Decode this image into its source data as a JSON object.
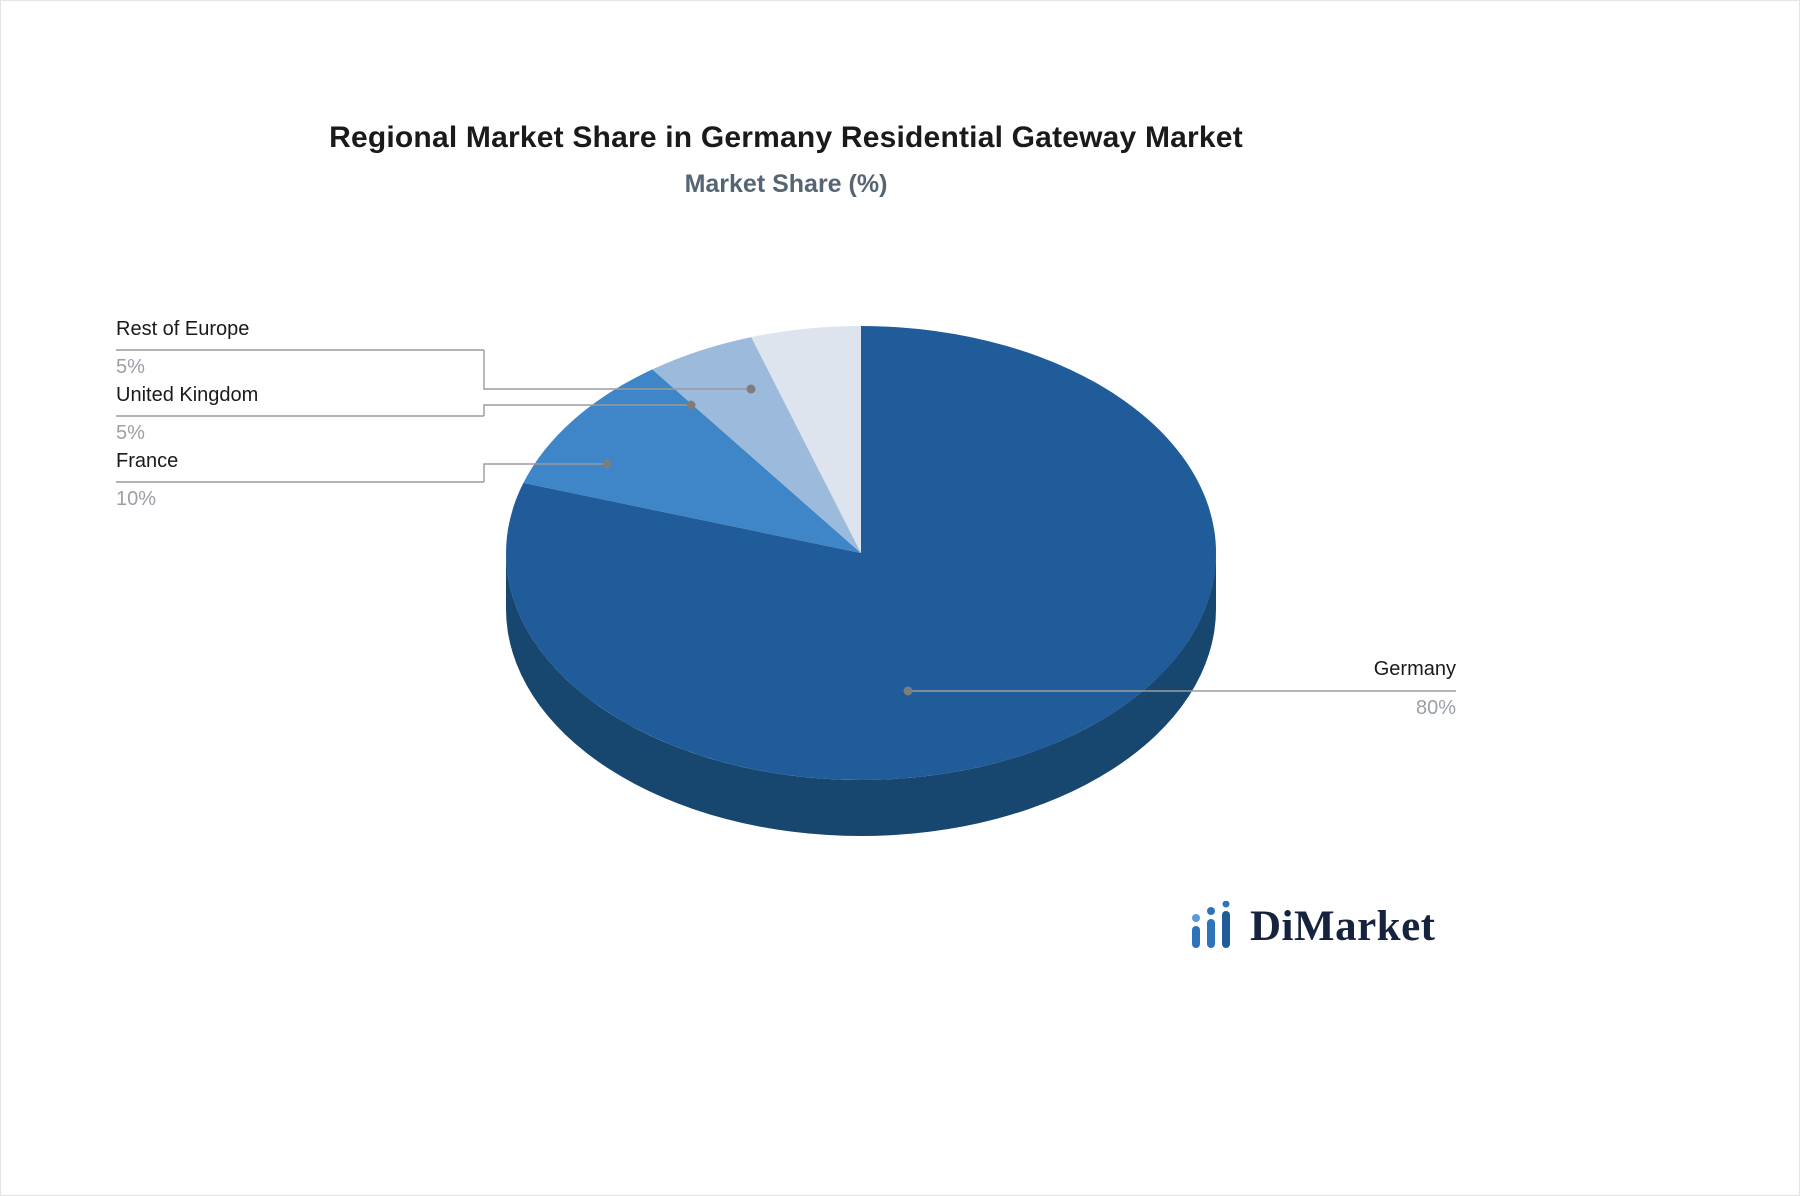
{
  "chart_data": {
    "type": "pie",
    "style": "3d",
    "title": "Regional Market Share in Germany Residential Gateway Market",
    "subtitle": "Market Share (%)",
    "unit": "%",
    "direction": "clockwise",
    "start_angle_deg": 0,
    "legend_position": "none",
    "labels": "outside-with-leader-lines",
    "depth_color": "#17466f",
    "slices": [
      {
        "label": "Germany",
        "value": 80,
        "display": "80%",
        "color": "#1f5c99"
      },
      {
        "label": "France",
        "value": 10,
        "display": "10%",
        "color": "#3e86c7"
      },
      {
        "label": "United Kingdom",
        "value": 5,
        "display": "5%",
        "color": "#9cbbdc"
      },
      {
        "label": "Rest of Europe",
        "value": 5,
        "display": "5%",
        "color": "#dde4ee"
      }
    ]
  },
  "branding": {
    "name": "DiMarket",
    "icon": "bar-chart-icon",
    "text_color": "#15233f",
    "icon_color": "#2e74b8"
  },
  "colors": {
    "title": "#1a1a1a",
    "subtitle": "#566573",
    "label_name": "#1a1a1a",
    "label_value": "#9aa0a6",
    "leader_line": "#9b9b9b"
  }
}
